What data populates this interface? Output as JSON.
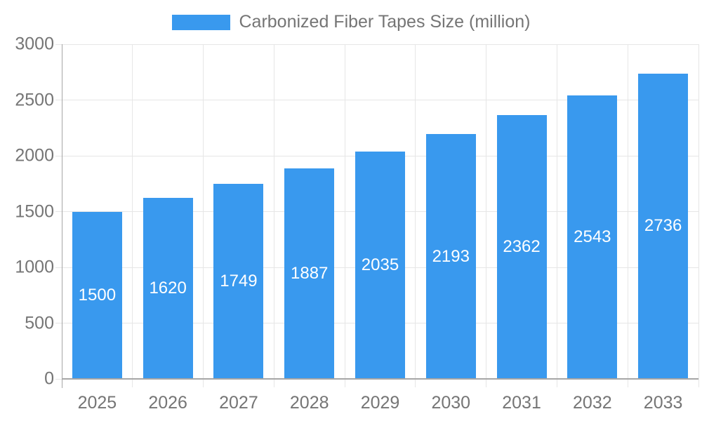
{
  "chart_data": {
    "type": "bar",
    "title": "Carbonized Fiber Tapes Size (million)",
    "categories": [
      "2025",
      "2026",
      "2027",
      "2028",
      "2029",
      "2030",
      "2031",
      "2032",
      "2033"
    ],
    "series": [
      {
        "name": "Carbonized Fiber Tapes Size (million)",
        "values": [
          1500,
          1620,
          1749,
          1887,
          2035,
          2193,
          2362,
          2543,
          2736
        ]
      }
    ],
    "xlabel": "",
    "ylabel": "",
    "ylim": [
      0,
      3000
    ],
    "yticks": [
      0,
      500,
      1000,
      1500,
      2000,
      2500,
      3000
    ],
    "grid": true,
    "legend_position": "top-center",
    "bar_labels_visible": true,
    "colors": {
      "bar": "#3999EE",
      "grid_line": "#E6E6E6",
      "axis_line": "#A6A6A6",
      "tick_text": "#757575",
      "legend_text": "#757575",
      "bar_label_text": "#FFFFFF",
      "background": "#FFFFFF"
    }
  }
}
